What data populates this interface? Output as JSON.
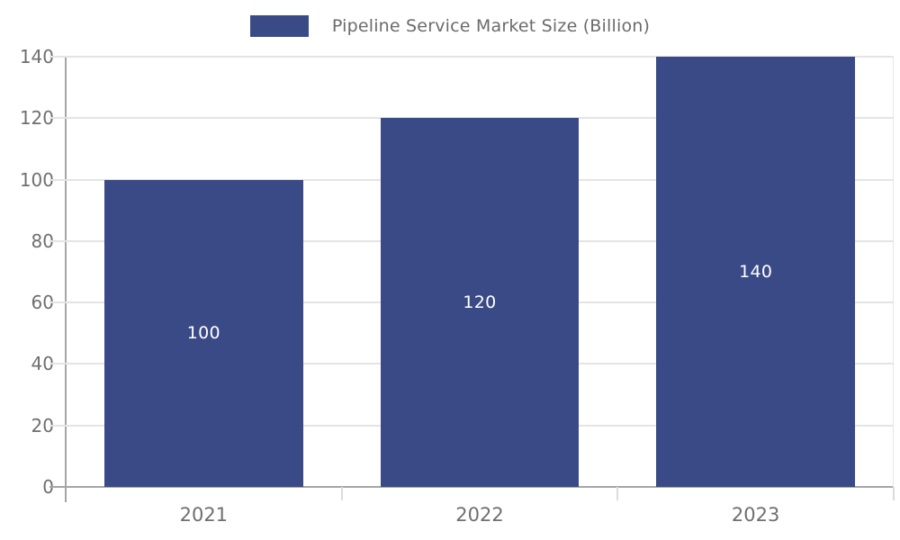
{
  "chart_data": {
    "type": "bar",
    "title": "Pipeline Service Market Size (Billion)",
    "legend": {
      "label": "Pipeline Service Market Size (Billion)",
      "position": "top"
    },
    "categories": [
      "2021",
      "2022",
      "2023"
    ],
    "values": [
      100,
      120,
      140
    ],
    "bar_value_labels": [
      "100",
      "120",
      "140"
    ],
    "xlabel": "",
    "ylabel": "",
    "ylim": [
      0,
      140
    ],
    "yticks": [
      0,
      20,
      40,
      60,
      80,
      100,
      120,
      140
    ],
    "grid": true,
    "colors": {
      "bar": "#3a4a86",
      "bar_label_text": "#ffffff",
      "axis_line": "#a6a6a6",
      "gridline": "#e4e4e4",
      "tick_label_text": "#6f6f6f",
      "legend_text": "#6b6b6b",
      "background": "#ffffff"
    }
  }
}
